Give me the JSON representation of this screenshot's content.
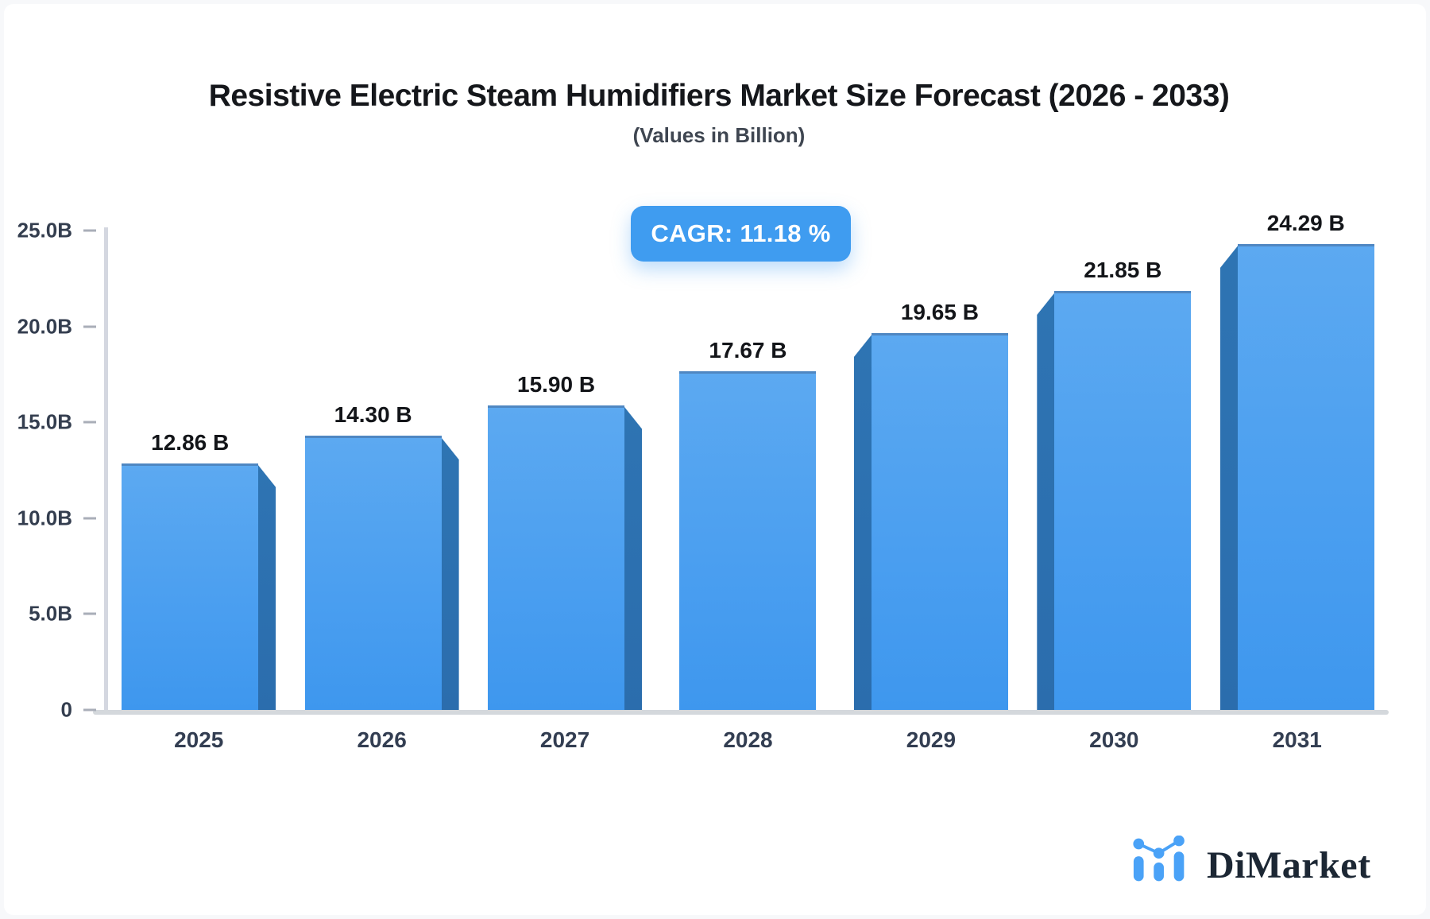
{
  "page": {
    "background": "#f7f8fa",
    "card_background": "#ffffff"
  },
  "header": {
    "title": "Resistive Electric Steam Humidifiers Market Size Forecast (2026 - 2033)",
    "subtitle": "(Values in Billion)"
  },
  "badge": {
    "label": "CAGR: 11.18 %",
    "background": "#3f9cf0",
    "text_color": "#ffffff"
  },
  "chart_data": {
    "type": "bar",
    "title": "Resistive Electric Steam Humidifiers Market Size Forecast (2026 - 2033)",
    "subtitle": "(Values in Billion)",
    "categories": [
      "2025",
      "2026",
      "2027",
      "2028",
      "2029",
      "2030",
      "2031"
    ],
    "values": [
      12.86,
      14.3,
      15.9,
      17.67,
      19.65,
      21.85,
      24.29
    ],
    "value_labels": [
      "12.86 B",
      "14.30 B",
      "15.90 B",
      "17.67 B",
      "19.65 B",
      "21.85 B",
      "24.29 B"
    ],
    "xlabel": "",
    "ylabel": "",
    "ylim": [
      0,
      25
    ],
    "yticks": [
      {
        "value": 0,
        "label": "0"
      },
      {
        "value": 5,
        "label": "5.0B"
      },
      {
        "value": 10,
        "label": "10.0B"
      },
      {
        "value": 15,
        "label": "15.0B"
      },
      {
        "value": 20,
        "label": "20.0B"
      },
      {
        "value": 25,
        "label": "25.0B"
      }
    ],
    "grid": false,
    "legend_position": "none",
    "bar_color_top": "#5ca9f1",
    "bar_color_bottom": "#3e97ee",
    "bar_side_color": "#2e74b3",
    "effect": "pseudo-3d-center-perspective"
  },
  "footer": {
    "brand": "DiMarket",
    "logo_icon": "bar-chart-logo-icon",
    "icon_color": "#4aa2f7",
    "brand_color": "#1c2734"
  }
}
